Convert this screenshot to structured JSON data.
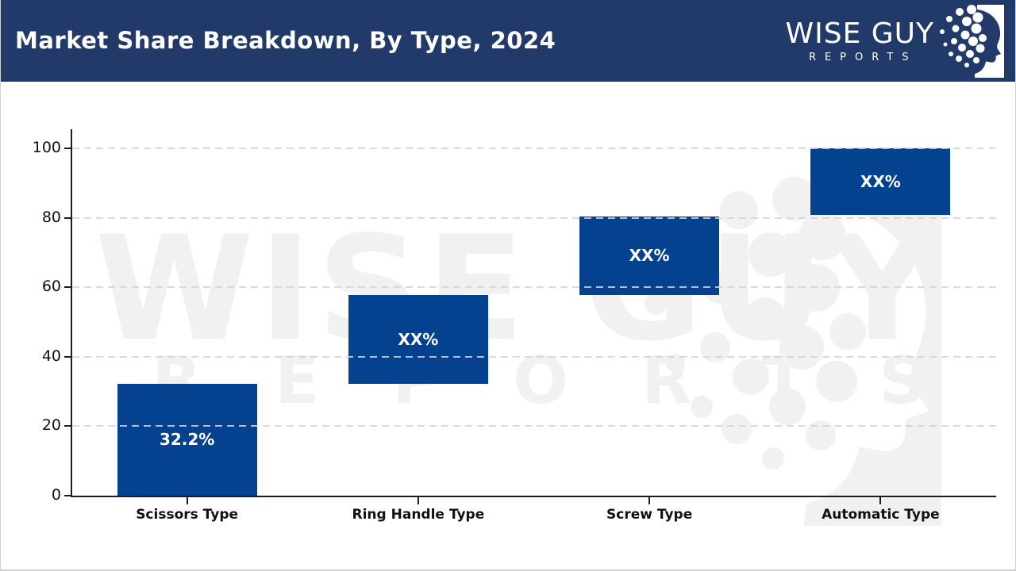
{
  "header": {
    "title": "Market Share Breakdown, By Type, 2024",
    "bg_color": "#223a6a",
    "logo": {
      "line1": "WISE GUY",
      "line2": "REPORTS"
    }
  },
  "watermark": {
    "line1": "WISE GUY",
    "line2": "REPORTS"
  },
  "chart_data": {
    "type": "bar",
    "subtype": "waterfall",
    "title": "Market Share Breakdown, By Type, 2024",
    "categories": [
      "Scissors Type",
      "Ring Handle Type",
      "Screw Type",
      "Automatic Type"
    ],
    "bars": [
      {
        "category": "Scissors Type",
        "start": 0,
        "end": 32.2,
        "label": "32.2%"
      },
      {
        "category": "Ring Handle Type",
        "start": 32.2,
        "end": 57.8,
        "label": "XX%"
      },
      {
        "category": "Screw Type",
        "start": 57.8,
        "end": 80.4,
        "label": "XX%"
      },
      {
        "category": "Automatic Type",
        "start": 80.8,
        "end": 100,
        "label": "XX%"
      }
    ],
    "y_ticks": [
      0,
      20,
      40,
      60,
      80,
      100
    ],
    "ylim": [
      0,
      105
    ],
    "xlabel": "",
    "ylabel": "",
    "bar_color": "#04418f",
    "bar_label_color": "#ffffff",
    "grid": "horizontal-dashed",
    "grid_color": "#d4d4d4",
    "legend": "none"
  }
}
